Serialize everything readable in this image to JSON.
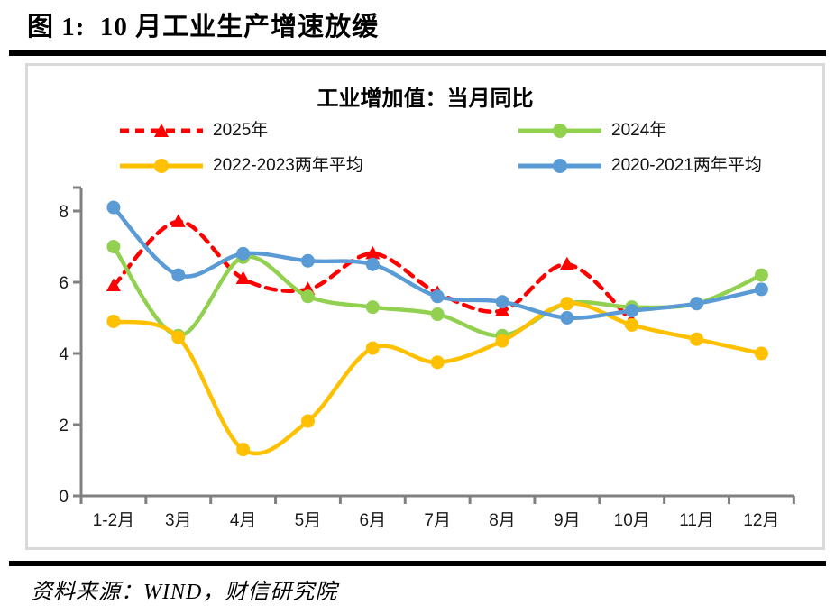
{
  "page_title": "图 1:  10 月工业生产增速放缓",
  "source_label": "资料来源：WIND，财信研究院",
  "colors": {
    "axis": "#808080",
    "frame": "#d9d9d9",
    "tick_label": "#1a1a1a",
    "rule": "#000000"
  },
  "chart_data": {
    "type": "line",
    "title": "工业增加值：当月同比",
    "xlabel": "",
    "ylabel": "",
    "ylim": [
      0,
      8.7
    ],
    "yticks": [
      0,
      2,
      4,
      6,
      8
    ],
    "grid": false,
    "legend_position": "top",
    "categories": [
      "1-2月",
      "3月",
      "4月",
      "5月",
      "6月",
      "7月",
      "8月",
      "9月",
      "10月",
      "11月",
      "12月"
    ],
    "series": [
      {
        "name": "2025年",
        "color": "#ff0000",
        "dash": true,
        "marker": "triangle",
        "values": [
          5.9,
          7.7,
          6.1,
          5.8,
          6.8,
          5.7,
          5.2,
          6.5,
          4.9,
          null,
          null
        ]
      },
      {
        "name": "2024年",
        "color": "#92d050",
        "dash": false,
        "marker": "circle",
        "values": [
          7.0,
          4.5,
          6.7,
          5.6,
          5.3,
          5.1,
          4.5,
          5.4,
          5.3,
          5.4,
          6.2
        ]
      },
      {
        "name": "2022-2023两年平均",
        "color": "#ffc000",
        "dash": false,
        "marker": "circle",
        "values": [
          4.9,
          4.45,
          1.3,
          2.1,
          4.15,
          3.75,
          4.35,
          5.4,
          4.8,
          4.4,
          4.0
        ]
      },
      {
        "name": "2020-2021两年平均",
        "color": "#5b9bd5",
        "dash": false,
        "marker": "circle",
        "values": [
          8.1,
          6.2,
          6.8,
          6.6,
          6.5,
          5.6,
          5.45,
          5.0,
          5.2,
          5.4,
          5.8
        ]
      }
    ]
  }
}
